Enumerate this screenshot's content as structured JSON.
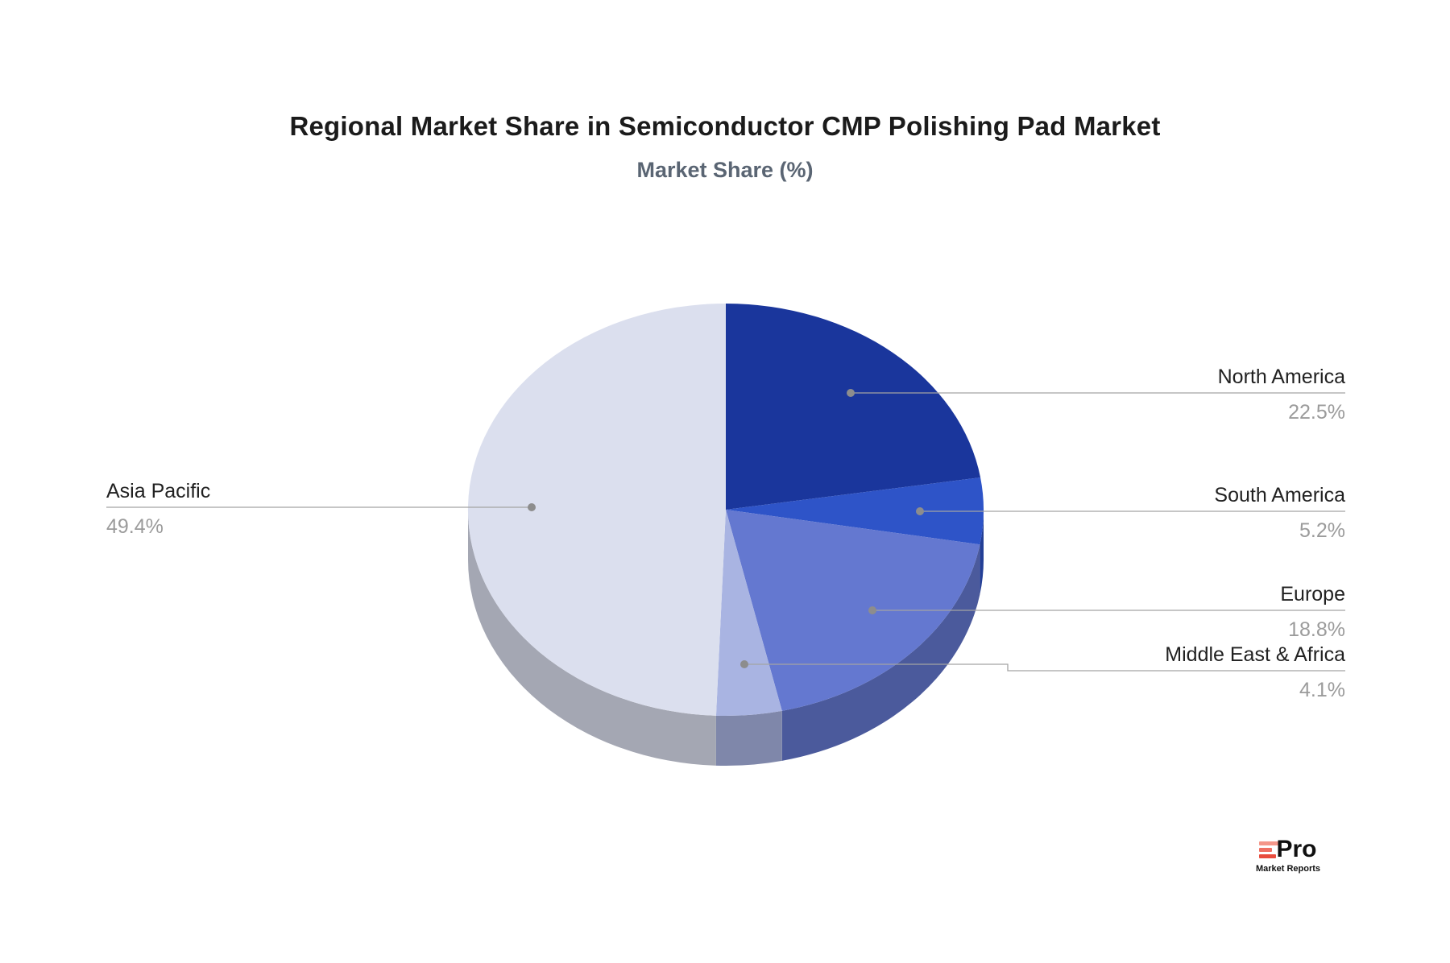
{
  "title": "Regional Market Share in Semiconductor CMP Polishing Pad Market",
  "subtitle": "Market Share (%)",
  "logo": {
    "name": "Pro",
    "tagline": "Market Reports"
  },
  "chart_data": {
    "type": "pie",
    "title": "Regional Market Share in Semiconductor CMP Polishing Pad Market",
    "subtitle": "Market Share (%)",
    "unit": "%",
    "effect": "3d",
    "start_angle_deg": 0,
    "direction": "clockwise",
    "legend_position": "outside-labels",
    "slices": [
      {
        "label": "North America",
        "value": 22.5,
        "value_label": "22.5%",
        "color": "#1a369c"
      },
      {
        "label": "South America",
        "value": 5.2,
        "value_label": "5.2%",
        "color": "#2e54c8"
      },
      {
        "label": "Europe",
        "value": 18.8,
        "value_label": "18.8%",
        "color": "#6478d0"
      },
      {
        "label": "Middle East & Africa",
        "value": 4.1,
        "value_label": "4.1%",
        "color": "#a9b4e2"
      },
      {
        "label": "Asia Pacific",
        "value": 49.4,
        "value_label": "49.4%",
        "color": "#dbdfee"
      }
    ],
    "label_color": "#212121",
    "value_color": "#9b9b9b",
    "leader_color": "#a3a3a3"
  }
}
